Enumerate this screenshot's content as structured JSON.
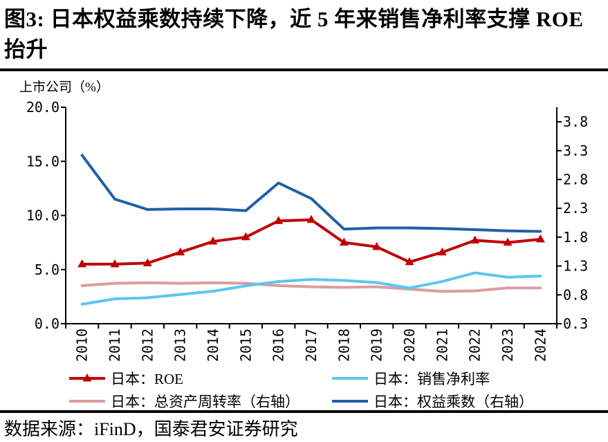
{
  "figure": {
    "title": "图3:  日本权益乘数持续下降，近 5 年来销售净利率支撑 ROE 抬升",
    "source": "数据来源：iFinD，国泰君安证券研究"
  },
  "chart_data": {
    "type": "line",
    "axis_note": "上市公司（%）",
    "categories": [
      "2010",
      "2011",
      "2012",
      "2013",
      "2014",
      "2015",
      "2016",
      "2017",
      "2018",
      "2019",
      "2020",
      "2021",
      "2022",
      "2023",
      "2024"
    ],
    "left_axis": {
      "label_ticks": [
        "20.0",
        "15.0",
        "10.0",
        "5.0",
        "0.0"
      ],
      "min": 0,
      "max": 20
    },
    "right_axis": {
      "label_ticks": [
        "3.8",
        "3.3",
        "2.8",
        "2.3",
        "1.8",
        "1.3",
        "0.8",
        "0.3"
      ],
      "min": 0.3,
      "max": 3.8
    },
    "grid": false,
    "legend_position": "bottom",
    "colors": {
      "roe": "#C00000",
      "net_margin": "#5BC6F0",
      "asset_turnover": "#DB9C9C",
      "equity_multiplier": "#1F5FA8",
      "axis": "#000000"
    },
    "series": [
      {
        "name": "日本：ROE",
        "axis": "left",
        "color": "#C00000",
        "marker": "triangle",
        "values": [
          5.5,
          5.5,
          5.6,
          6.6,
          7.6,
          8.0,
          9.5,
          9.6,
          7.5,
          7.1,
          5.7,
          6.6,
          7.7,
          7.5,
          7.8
        ]
      },
      {
        "name": "日本：销售净利率",
        "axis": "left",
        "color": "#5BC6F0",
        "marker": "none",
        "values": [
          1.8,
          2.3,
          2.4,
          2.7,
          3.0,
          3.5,
          3.9,
          4.1,
          4.0,
          3.8,
          3.3,
          3.9,
          4.7,
          4.3,
          4.4
        ]
      },
      {
        "name": "日本：总资产周转率（右轴）",
        "axis": "right",
        "color": "#DB9C9C",
        "marker": "none",
        "values": [
          0.96,
          1.0,
          1.01,
          1.0,
          1.01,
          1.0,
          0.96,
          0.94,
          0.93,
          0.94,
          0.9,
          0.86,
          0.87,
          0.92,
          0.92
        ]
      },
      {
        "name": "日本：权益乘数（右轴）",
        "axis": "right",
        "color": "#1F5FA8",
        "marker": "none",
        "values": [
          3.22,
          2.46,
          2.28,
          2.29,
          2.29,
          2.26,
          2.74,
          2.47,
          1.94,
          1.96,
          1.96,
          1.95,
          1.93,
          1.91,
          1.9
        ]
      }
    ]
  }
}
